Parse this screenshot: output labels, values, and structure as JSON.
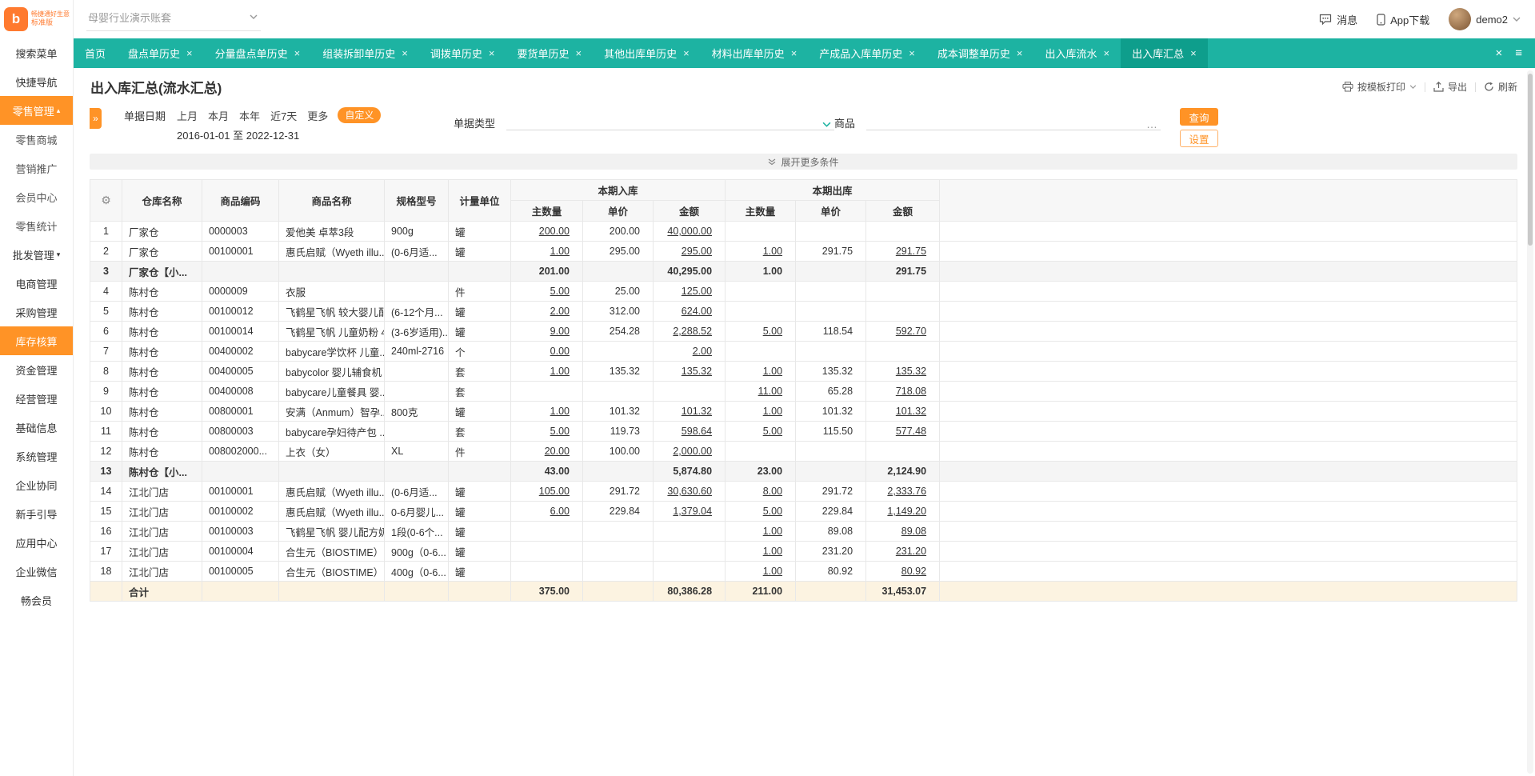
{
  "brand": {
    "logo_letter": "b",
    "name": "畅捷通好生意",
    "edition": "标准版"
  },
  "topbar": {
    "account_select": "母婴行业演示账套",
    "messages_label": "消息",
    "app_download_label": "App下载",
    "username": "demo2"
  },
  "sidebar": {
    "items": [
      {
        "id": "search-menu",
        "label": "搜索菜单",
        "style": "normal"
      },
      {
        "id": "quick-nav",
        "label": "快捷导航",
        "style": "normal"
      },
      {
        "id": "retail-mgmt",
        "label": "零售管理",
        "style": "active",
        "arrow": "up"
      },
      {
        "id": "retail-mall",
        "label": "零售商城",
        "style": "sub"
      },
      {
        "id": "marketing-promo",
        "label": "营销推广",
        "style": "sub"
      },
      {
        "id": "member-center",
        "label": "会员中心",
        "style": "sub"
      },
      {
        "id": "retail-stats",
        "label": "零售统计",
        "style": "sub"
      },
      {
        "id": "wholesale-mgmt",
        "label": "批发管理",
        "style": "normal",
        "arrow": "down"
      },
      {
        "id": "ecommerce-mgmt",
        "label": "电商管理",
        "style": "normal"
      },
      {
        "id": "purchase-mgmt",
        "label": "采购管理",
        "style": "normal"
      },
      {
        "id": "inventory-accounting",
        "label": "库存核算",
        "style": "active"
      },
      {
        "id": "funds-mgmt",
        "label": "资金管理",
        "style": "normal"
      },
      {
        "id": "operation-mgmt",
        "label": "经营管理",
        "style": "normal"
      },
      {
        "id": "basic-info",
        "label": "基础信息",
        "style": "normal"
      },
      {
        "id": "system-mgmt",
        "label": "系统管理",
        "style": "normal"
      },
      {
        "id": "enterprise-collab",
        "label": "企业协同",
        "style": "normal"
      },
      {
        "id": "beginner-guide",
        "label": "新手引导",
        "style": "normal"
      },
      {
        "id": "app-center",
        "label": "应用中心",
        "style": "normal"
      },
      {
        "id": "enterprise-wechat",
        "label": "企业微信",
        "style": "normal"
      },
      {
        "id": "chang-member",
        "label": "畅会员",
        "style": "normal"
      }
    ]
  },
  "tabbar": {
    "tabs": [
      {
        "id": "home",
        "label": "首页",
        "closable": false,
        "active": false
      },
      {
        "id": "count-history",
        "label": "盘点单历史",
        "closable": true,
        "active": false
      },
      {
        "id": "weight-count-history",
        "label": "分量盘点单历史",
        "closable": true,
        "active": false
      },
      {
        "id": "assembly-history",
        "label": "组装拆卸单历史",
        "closable": true,
        "active": false
      },
      {
        "id": "transfer-history",
        "label": "调拨单历史",
        "closable": true,
        "active": false
      },
      {
        "id": "goods-request-history",
        "label": "要货单历史",
        "closable": true,
        "active": false
      },
      {
        "id": "other-outbound-history",
        "label": "其他出库单历史",
        "closable": true,
        "active": false
      },
      {
        "id": "material-outbound-history",
        "label": "材料出库单历史",
        "closable": true,
        "active": false
      },
      {
        "id": "finished-inbound-history",
        "label": "产成品入库单历史",
        "closable": true,
        "active": false
      },
      {
        "id": "cost-adjust-history",
        "label": "成本调整单历史",
        "closable": true,
        "active": false
      },
      {
        "id": "inout-flow",
        "label": "出入库流水",
        "closable": true,
        "active": false
      },
      {
        "id": "inout-summary",
        "label": "出入库汇总",
        "closable": true,
        "active": true
      }
    ],
    "close_all_icon": "×",
    "tab_menu_icon": "≡"
  },
  "page": {
    "title": "出入库汇总(流水汇总)",
    "print_label": "按模板打印",
    "export_label": "导出",
    "refresh_label": "刷新"
  },
  "filters": {
    "date_label": "单据日期",
    "date_quick": [
      "上月",
      "本月",
      "本年",
      "近7天",
      "更多"
    ],
    "date_custom_badge": "自定义",
    "date_range": "2016-01-01 至 2022-12-31",
    "doc_type_label": "单据类型",
    "product_label": "商品",
    "search_button": "查询",
    "settings_button": "设置",
    "expand_more": "展开更多条件"
  },
  "table": {
    "group_in": "本期入库",
    "group_out": "本期出库",
    "columns": [
      "仓库名称",
      "商品编码",
      "商品名称",
      "规格型号",
      "计量单位"
    ],
    "sub_columns": [
      "主数量",
      "单价",
      "金额"
    ],
    "rows": [
      {
        "type": "data",
        "cells": [
          "1",
          "厂家仓",
          "0000003",
          "爱他美 卓萃3段",
          "900g",
          "罐",
          "200.00",
          "200.00",
          "40,000.00",
          "",
          "",
          ""
        ]
      },
      {
        "type": "data",
        "cells": [
          "2",
          "厂家仓",
          "00100001",
          "惠氏启赋（Wyeth illu...",
          "(0-6月适...",
          "罐",
          "1.00",
          "295.00",
          "295.00",
          "1.00",
          "291.75",
          "291.75"
        ]
      },
      {
        "type": "subtotal",
        "cells": [
          "3",
          "厂家仓【小...",
          "",
          "",
          "",
          "",
          "201.00",
          "",
          "40,295.00",
          "1.00",
          "",
          "291.75"
        ]
      },
      {
        "type": "data",
        "cells": [
          "4",
          "陈村仓",
          "0000009",
          "衣服",
          "",
          "件",
          "5.00",
          "25.00",
          "125.00",
          "",
          "",
          ""
        ]
      },
      {
        "type": "data",
        "cells": [
          "5",
          "陈村仓",
          "00100012",
          "飞鹤星飞帆 较大婴儿配...",
          "(6-12个月...",
          "罐",
          "2.00",
          "312.00",
          "624.00",
          "",
          "",
          ""
        ]
      },
      {
        "type": "data",
        "cells": [
          "6",
          "陈村仓",
          "00100014",
          "飞鹤星飞帆 儿童奶粉 4...",
          "(3-6岁适用)...",
          "罐",
          "9.00",
          "254.28",
          "2,288.52",
          "5.00",
          "118.54",
          "592.70"
        ]
      },
      {
        "type": "data",
        "cells": [
          "7",
          "陈村仓",
          "00400002",
          "babycare学饮杯 儿童...",
          "240ml-2716",
          "个",
          "0.00",
          "",
          "2.00",
          "",
          "",
          ""
        ]
      },
      {
        "type": "data",
        "cells": [
          "8",
          "陈村仓",
          "00400005",
          "babycolor 婴儿辅食机 ...",
          "",
          "套",
          "1.00",
          "135.32",
          "135.32",
          "1.00",
          "135.32",
          "135.32"
        ]
      },
      {
        "type": "data",
        "cells": [
          "9",
          "陈村仓",
          "00400008",
          "babycare儿童餐具 婴...",
          "",
          "套",
          "",
          "",
          "",
          "11.00",
          "65.28",
          "718.08"
        ]
      },
      {
        "type": "data",
        "cells": [
          "10",
          "陈村仓",
          "00800001",
          "安满（Anmum）智孕...",
          "800克",
          "罐",
          "1.00",
          "101.32",
          "101.32",
          "1.00",
          "101.32",
          "101.32"
        ]
      },
      {
        "type": "data",
        "cells": [
          "11",
          "陈村仓",
          "00800003",
          "babycare孕妇待产包 ...",
          "",
          "套",
          "5.00",
          "119.73",
          "598.64",
          "5.00",
          "115.50",
          "577.48"
        ]
      },
      {
        "type": "data",
        "cells": [
          "12",
          "陈村仓",
          "008002000...",
          "上衣（女）",
          "XL",
          "件",
          "20.00",
          "100.00",
          "2,000.00",
          "",
          "",
          ""
        ]
      },
      {
        "type": "subtotal",
        "cells": [
          "13",
          "陈村仓【小...",
          "",
          "",
          "",
          "",
          "43.00",
          "",
          "5,874.80",
          "23.00",
          "",
          "2,124.90"
        ]
      },
      {
        "type": "data",
        "cells": [
          "14",
          "江北门店",
          "00100001",
          "惠氏启赋（Wyeth illu...",
          "(0-6月适...",
          "罐",
          "105.00",
          "291.72",
          "30,630.60",
          "8.00",
          "291.72",
          "2,333.76"
        ]
      },
      {
        "type": "data",
        "cells": [
          "15",
          "江北门店",
          "00100002",
          "惠氏启赋（Wyeth illu...",
          "0-6月婴儿...",
          "罐",
          "6.00",
          "229.84",
          "1,379.04",
          "5.00",
          "229.84",
          "1,149.20"
        ]
      },
      {
        "type": "data",
        "cells": [
          "16",
          "江北门店",
          "00100003",
          "飞鹤星飞帆 婴儿配方奶...",
          "1段(0-6个...",
          "罐",
          "",
          "",
          "",
          "1.00",
          "89.08",
          "89.08"
        ]
      },
      {
        "type": "data",
        "cells": [
          "17",
          "江北门店",
          "00100004",
          "合生元（BIOSTIME）...",
          "900g（0-6...",
          "罐",
          "",
          "",
          "",
          "1.00",
          "231.20",
          "231.20"
        ]
      },
      {
        "type": "data",
        "cells": [
          "18",
          "江北门店",
          "00100005",
          "合生元（BIOSTIME）...",
          "400g（0-6...",
          "罐",
          "",
          "",
          "",
          "1.00",
          "80.92",
          "80.92"
        ]
      }
    ],
    "total": {
      "type": "total",
      "cells": [
        "",
        "合计",
        "",
        "",
        "",
        "",
        "375.00",
        "",
        "80,386.28",
        "211.00",
        "",
        "31,453.07"
      ]
    }
  },
  "colors": {
    "teal": "#1db3a2",
    "teal_dark": "#0e9e8c",
    "orange": "#ff9326",
    "logo_orange": "#ff7a2f",
    "total_row_bg": "#fcf3e1"
  }
}
